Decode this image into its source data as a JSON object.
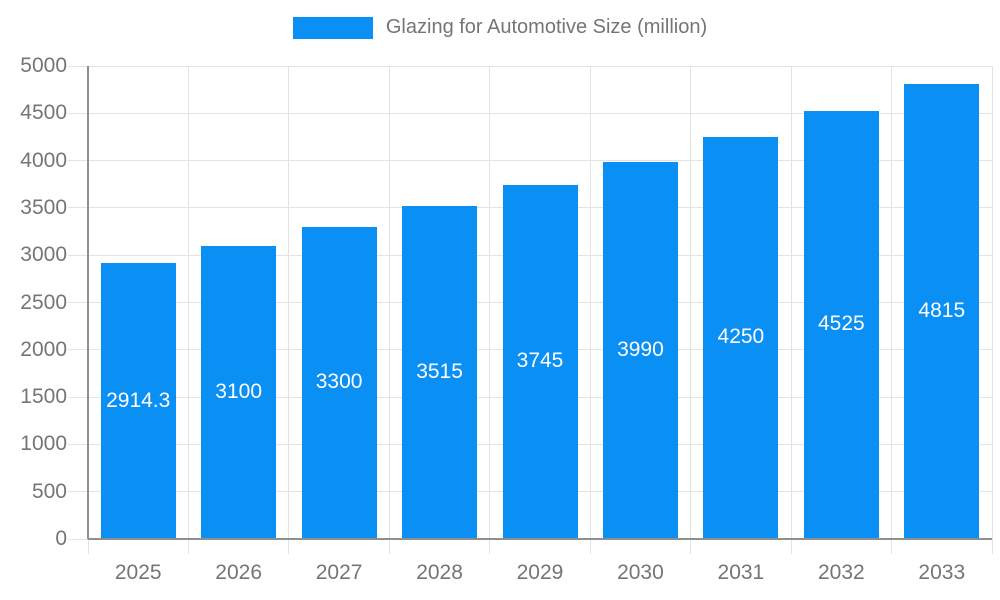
{
  "legend": {
    "label": "Glazing for Automotive Size (million)",
    "swatch_color": "#0a8ff4"
  },
  "colors": {
    "bar": "#0a8ff4",
    "grid": "#e3e3e3",
    "axis": "#8f8f8f",
    "tick_text": "#757575",
    "value_label": "#ffffff",
    "background": "#ffffff"
  },
  "chart_data": {
    "type": "bar",
    "title": "Glazing for Automotive Size (million)",
    "categories": [
      "2025",
      "2026",
      "2027",
      "2028",
      "2029",
      "2030",
      "2031",
      "2032",
      "2033"
    ],
    "values": [
      2914.3,
      3100,
      3300,
      3515,
      3745,
      3990,
      4250,
      4525,
      4815
    ],
    "value_labels": [
      "2914.3",
      "3100",
      "3300",
      "3515",
      "3745",
      "3990",
      "4250",
      "4525",
      "4815"
    ],
    "xlabel": "",
    "ylabel": "",
    "ylim": [
      0,
      5000
    ],
    "ytick_step": 500,
    "ytick_labels": [
      "0",
      "500",
      "1000",
      "1500",
      "2000",
      "2500",
      "3000",
      "3500",
      "4000",
      "4500",
      "5000"
    ],
    "grid": true,
    "legend_position": "top",
    "value_label_position": "inside-center"
  }
}
